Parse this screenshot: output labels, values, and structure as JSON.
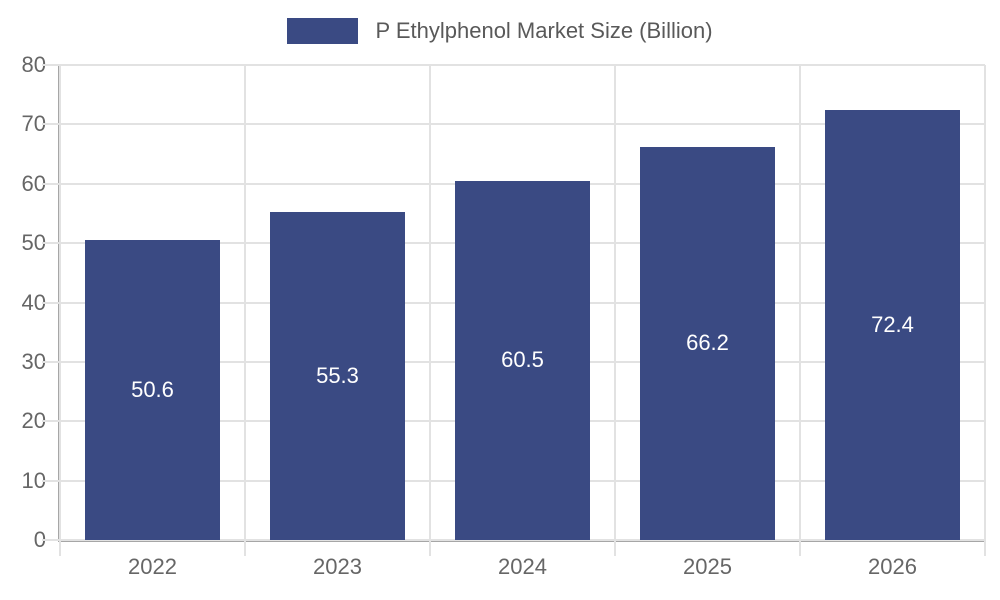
{
  "chart_data": {
    "type": "bar",
    "title": "P Ethylphenol Market Size (Billion)",
    "categories": [
      "2022",
      "2023",
      "2024",
      "2025",
      "2026"
    ],
    "values": [
      50.6,
      55.3,
      60.5,
      66.2,
      72.4
    ],
    "value_labels": [
      "50.6",
      "55.3",
      "60.5",
      "66.2",
      "72.4"
    ],
    "series": [
      {
        "name": "P Ethylphenol Market Size (Billion)",
        "values": [
          50.6,
          55.3,
          60.5,
          66.2,
          72.4
        ]
      }
    ],
    "xlabel": "",
    "ylabel": "",
    "yticks": [
      0,
      10,
      20,
      30,
      40,
      50,
      60,
      70,
      80
    ],
    "ylim": [
      0,
      80
    ],
    "grid": true,
    "legend_position": "top-center",
    "value_label_position": "inside-center",
    "colors": {
      "bar": "#3A4A83",
      "grid": "#E2E2E2",
      "axis": "#A6A6A6",
      "tick_label": "#666666",
      "legend_text": "#595959",
      "value_label": "#FFFFFF",
      "background": "#FFFFFF"
    }
  }
}
